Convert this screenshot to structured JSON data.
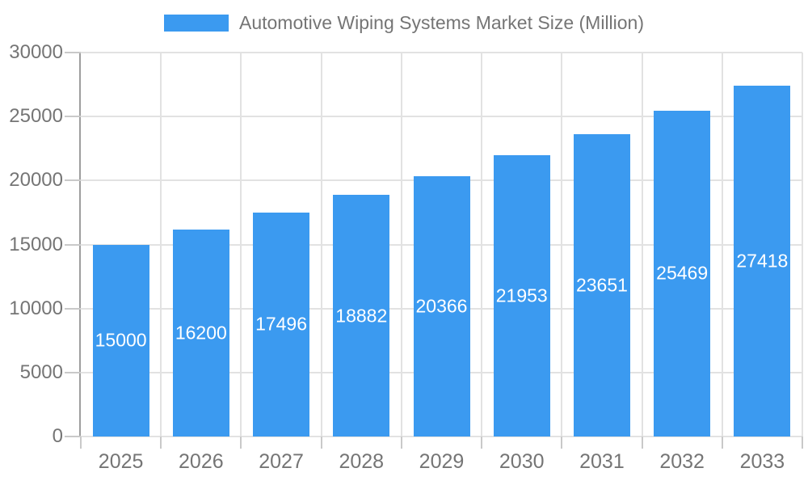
{
  "chart_data": {
    "type": "bar",
    "title": "Automotive Wiping Systems Market Size (Million)",
    "categories": [
      "2025",
      "2026",
      "2027",
      "2028",
      "2029",
      "2030",
      "2031",
      "2032",
      "2033"
    ],
    "values": [
      15000,
      16200,
      17496,
      18882,
      20366,
      21953,
      23651,
      25469,
      27418
    ],
    "series_name": "Automotive Wiping Systems Market Size (Million)",
    "xlabel": "",
    "ylabel": "",
    "ylim": [
      0,
      30000
    ],
    "ytick_interval": 5000,
    "ytick_labels": [
      "0",
      "5000",
      "10000",
      "15000",
      "20000",
      "25000",
      "30000"
    ],
    "grid": "both",
    "legend_position": "top-center",
    "value_labels": "inside-center-white"
  },
  "colors": {
    "bar": "#3b9af0",
    "grid": "#e2e2e2",
    "axis_line": "#9e9e9e",
    "tick": "#c9c9c9",
    "label_text": "#757575",
    "value_label_text": "#ffffff",
    "background": "#ffffff"
  }
}
